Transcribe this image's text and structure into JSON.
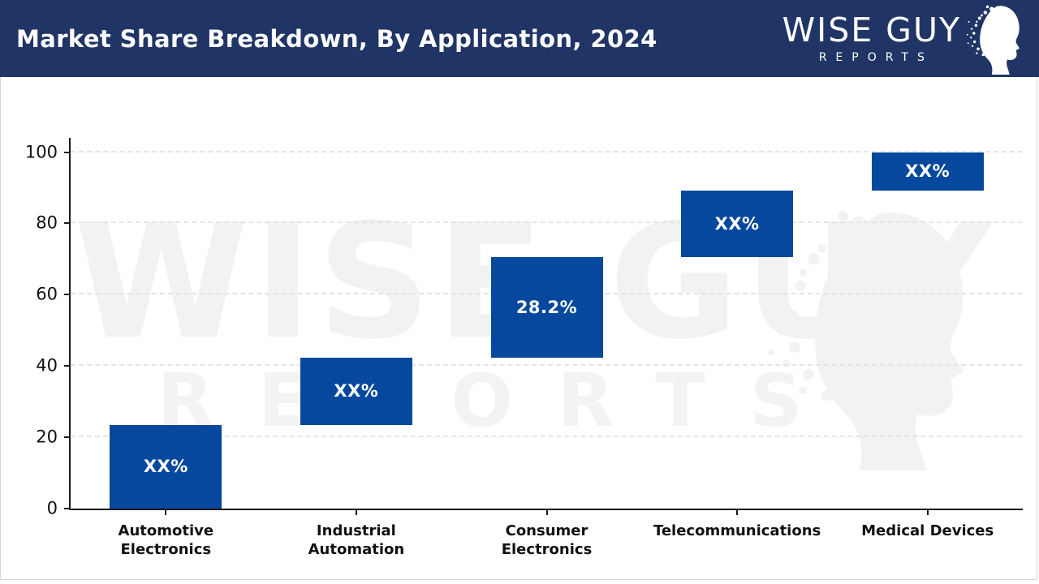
{
  "header": {
    "logo_line1": "WISE GUY",
    "logo_line2": "REPORTS"
  },
  "watermark": {
    "line1": "WISE GUY",
    "line2": "REPORTS"
  },
  "colors": {
    "header_bg": "#203566",
    "bar": "#06489d",
    "gridline": "#e4e4e4",
    "axis": "#1a1a1a",
    "watermark": "#f2f2f2"
  },
  "chart_data": {
    "type": "bar",
    "subtype": "waterfall",
    "title": "Market Share Breakdown, By Application, 2024",
    "categories": [
      "Automotive Electronics",
      "Industrial Automation",
      "Consumer Electronics",
      "Telecommunications",
      "Medical Devices"
    ],
    "category_label_lines": [
      [
        "Automotive",
        "Electronics"
      ],
      [
        "Industrial",
        "Automation"
      ],
      [
        "Consumer",
        "Electronics"
      ],
      [
        "Telecommunications"
      ],
      [
        "Medical Devices"
      ]
    ],
    "segments": [
      {
        "category": "Automotive Electronics",
        "start": 0,
        "end": 23.5,
        "value_label": "XX%"
      },
      {
        "category": "Industrial Automation",
        "start": 23.5,
        "end": 42.3,
        "value_label": "XX%"
      },
      {
        "category": "Consumer Electronics",
        "start": 42.3,
        "end": 70.5,
        "value_label": "28.2%",
        "value": 28.2
      },
      {
        "category": "Telecommunications",
        "start": 70.5,
        "end": 89.2,
        "value_label": "XX%"
      },
      {
        "category": "Medical Devices",
        "start": 89.2,
        "end": 100,
        "value_label": "XX%"
      }
    ],
    "yticks": [
      0,
      20,
      40,
      60,
      80,
      100
    ],
    "ylim": [
      0,
      104
    ],
    "xlabel": "",
    "ylabel": "",
    "grid": "horizontal-dashed",
    "legend": "none"
  }
}
